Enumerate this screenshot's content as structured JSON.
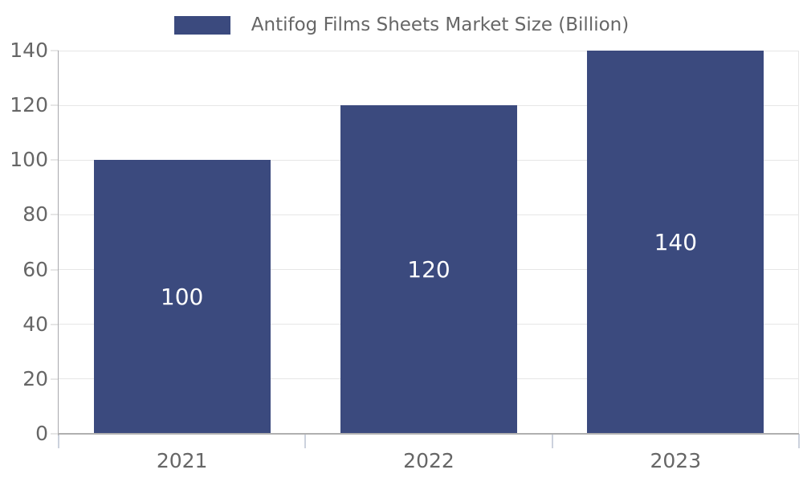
{
  "legend": {
    "items": [
      {
        "label": "Antifog Films Sheets Market Size (Billion)",
        "swatch_color": "#3B4A7E"
      }
    ]
  },
  "chart_data": {
    "type": "bar",
    "title": "Antifog Films Sheets Market Size (Billion)",
    "categories": [
      "2021",
      "2022",
      "2023"
    ],
    "series": [
      {
        "name": "Antifog Films Sheets Market Size (Billion)",
        "values": [
          100,
          120,
          140
        ]
      }
    ],
    "data_labels": [
      "100",
      "120",
      "140"
    ],
    "xlabel": "",
    "ylabel": "",
    "ylim": [
      0,
      140
    ],
    "yticks": [
      0,
      20,
      40,
      60,
      80,
      100,
      120,
      140
    ],
    "grid": true,
    "legend_position": "top",
    "colors": {
      "bar": "#3B4A7E",
      "text": "#666666",
      "data_label_text": "#FFFFFF",
      "gridline": "#E6E6E6",
      "y_axis_line": "#A8A8AC",
      "x_axis_line": "#B0B0B0",
      "boundary_tick": "#CCD2DD",
      "background": "#FFFFFF"
    }
  }
}
